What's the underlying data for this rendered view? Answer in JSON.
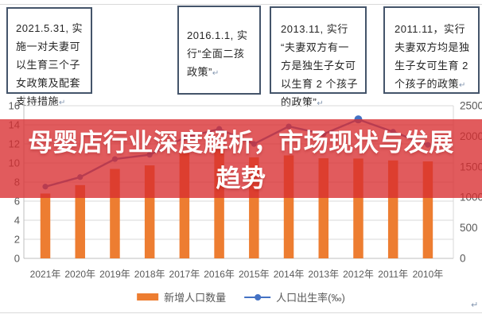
{
  "policy_boxes": [
    {
      "text": "2021.5.31, 实施一对夫妻可以生育三个子女政策及配套支持措施",
      "return_mark": "↵"
    },
    {
      "text": "2016.1.1, 实行“全面二孩政策”",
      "return_mark": "↵"
    },
    {
      "text": "2013.11, 实行“夫妻双方有一方是独生子女可以生育 2 个孩子的政策”",
      "return_mark": "↵"
    },
    {
      "text": "2011.11，实行夫妻双方均是独生子女可生育 2 个孩子的政策",
      "return_mark": "↵"
    }
  ],
  "overlay_title": {
    "line1": "母婴店行业深度解析，市场现状与发展",
    "line2": "趋势",
    "bg_color": "#D92D30",
    "text_color": "#FFFFFF"
  },
  "chart_data": {
    "type": "bar+line combo",
    "categories": [
      "2021年",
      "2020年",
      "2019年",
      "2018年",
      "2017年",
      "2016年",
      "2015年",
      "2014年",
      "2013年",
      "2012年",
      "2011年",
      "2010年"
    ],
    "series": [
      {
        "name": "新增人口数量",
        "type": "bar",
        "axis": "right",
        "color": "#ED7D31",
        "values": [
          1062,
          1200,
          1465,
          1523,
          1723,
          1786,
          1655,
          1687,
          1640,
          1635,
          1604,
          1588
        ]
      },
      {
        "name": "人口出生率(‰)",
        "type": "line",
        "axis": "left",
        "color": "#4472C4",
        "values": [
          7.52,
          8.52,
          10.41,
          10.86,
          12.64,
          13.57,
          11.99,
          13.83,
          13.03,
          14.57,
          13.27,
          11.9
        ],
        "highlight_category": "2012年",
        "highlight_index": 9
      }
    ],
    "left_axis": {
      "min": 0,
      "max": 16,
      "step": 2,
      "tick_labels": [
        "0",
        "2",
        "4",
        "6",
        "8",
        "10",
        "12",
        "14",
        "16"
      ]
    },
    "right_axis": {
      "min": 0,
      "max": 2500,
      "step": 500,
      "tick_labels": [
        "0",
        "500",
        "1000",
        "1500",
        "2000",
        "2500"
      ]
    },
    "grid": true,
    "legend_position": "bottom",
    "tick_color": "#595959",
    "gridline_color": "#d9d9d9",
    "axisline_color": "#bfbfbf"
  },
  "misc": {
    "trailing_return_mark": "↵"
  }
}
